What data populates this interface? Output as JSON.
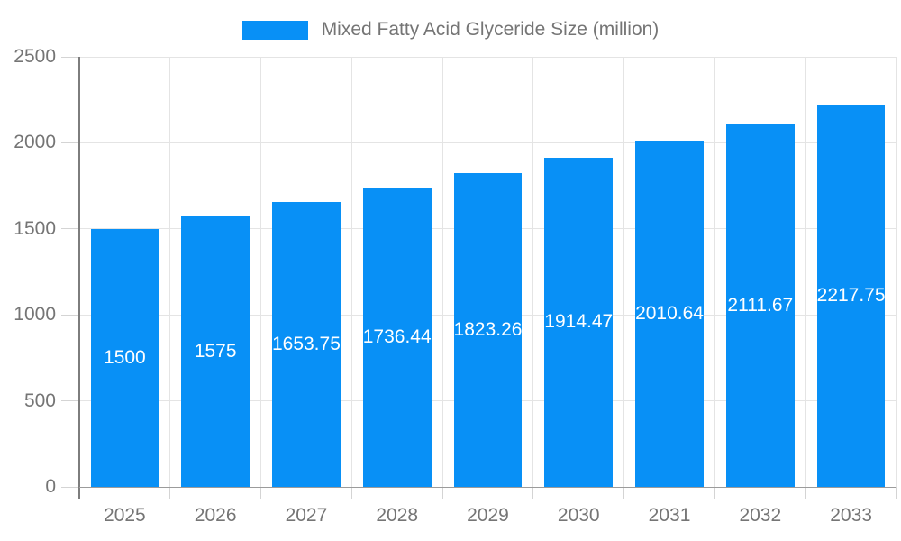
{
  "chart_data": {
    "type": "bar",
    "title": "Mixed Fatty Acid Glyceride Size (million)",
    "legend": "Mixed Fatty Acid Glyceride Size (million)",
    "legend_position": "top-center",
    "categories": [
      "2025",
      "2026",
      "2027",
      "2028",
      "2029",
      "2030",
      "2031",
      "2032",
      "2033"
    ],
    "values": [
      1500,
      1575,
      1653.75,
      1736.44,
      1823.26,
      1914.47,
      2010.64,
      2111.67,
      2217.75
    ],
    "value_labels": [
      "1500",
      "1575",
      "1653.75",
      "1736.44",
      "1823.26",
      "1914.47",
      "2010.64",
      "2111.67",
      "2217.75"
    ],
    "xlabel": "",
    "ylabel": "",
    "ylim": [
      0,
      2500
    ],
    "yticks": [
      0,
      500,
      1000,
      1500,
      2000,
      2500
    ],
    "grid": true,
    "colors": {
      "bar": "#0890f6",
      "grid": "#e4e4e4",
      "tick": "#d4d4d4",
      "y_axis": "#7d7d7d",
      "x_axis": "#9b9b9b",
      "axis_text": "#757575",
      "bar_label": "#ffffff",
      "background": "#ffffff"
    }
  }
}
